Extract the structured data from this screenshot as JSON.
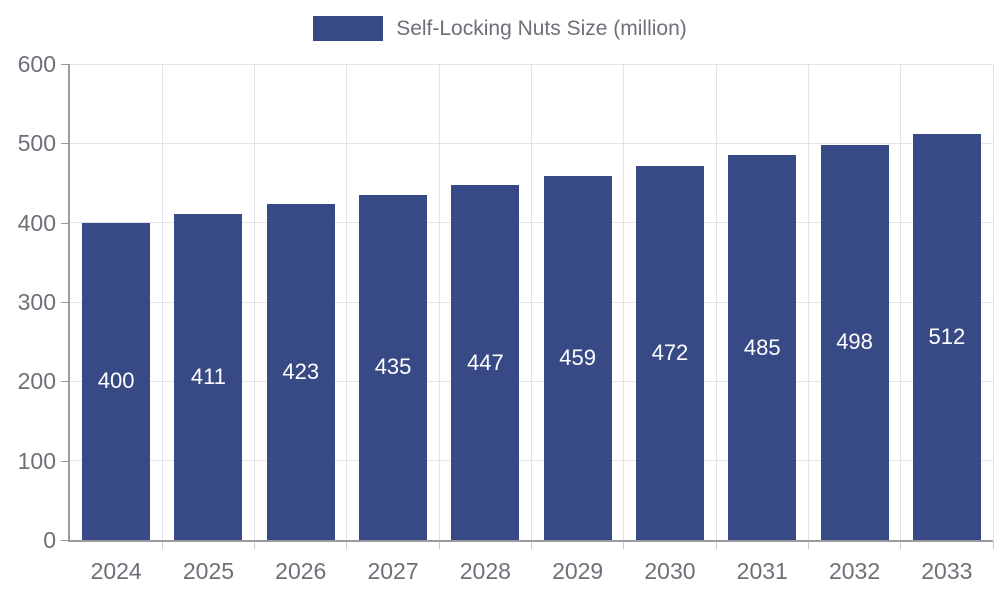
{
  "chart_data": {
    "type": "bar",
    "title": "",
    "legend": "Self-Locking Nuts Size (million)",
    "series_name": "Self-Locking Nuts Size (million)",
    "categories": [
      "2024",
      "2025",
      "2026",
      "2027",
      "2028",
      "2029",
      "2030",
      "2031",
      "2032",
      "2033"
    ],
    "values": [
      400,
      411,
      423,
      435,
      447,
      459,
      472,
      485,
      498,
      512
    ],
    "data_labels": [
      "400",
      "411",
      "423",
      "435",
      "447",
      "459",
      "472",
      "485",
      "498",
      "512"
    ],
    "xlabel": "",
    "ylabel": "",
    "ylim": [
      0,
      600
    ],
    "yticks": [
      0,
      100,
      200,
      300,
      400,
      500,
      600
    ],
    "grid": "on",
    "legend_position": "top-center",
    "data_label_position": "inside-center",
    "colors": {
      "bar": "#384a85",
      "bar_label_text": "#ffffff",
      "axis_text": "#6e7079",
      "axis_line": "#9a9aa0",
      "grid_line": "#e3e3e8",
      "x_tick": "#c9c9ce",
      "background": "#ffffff"
    }
  }
}
